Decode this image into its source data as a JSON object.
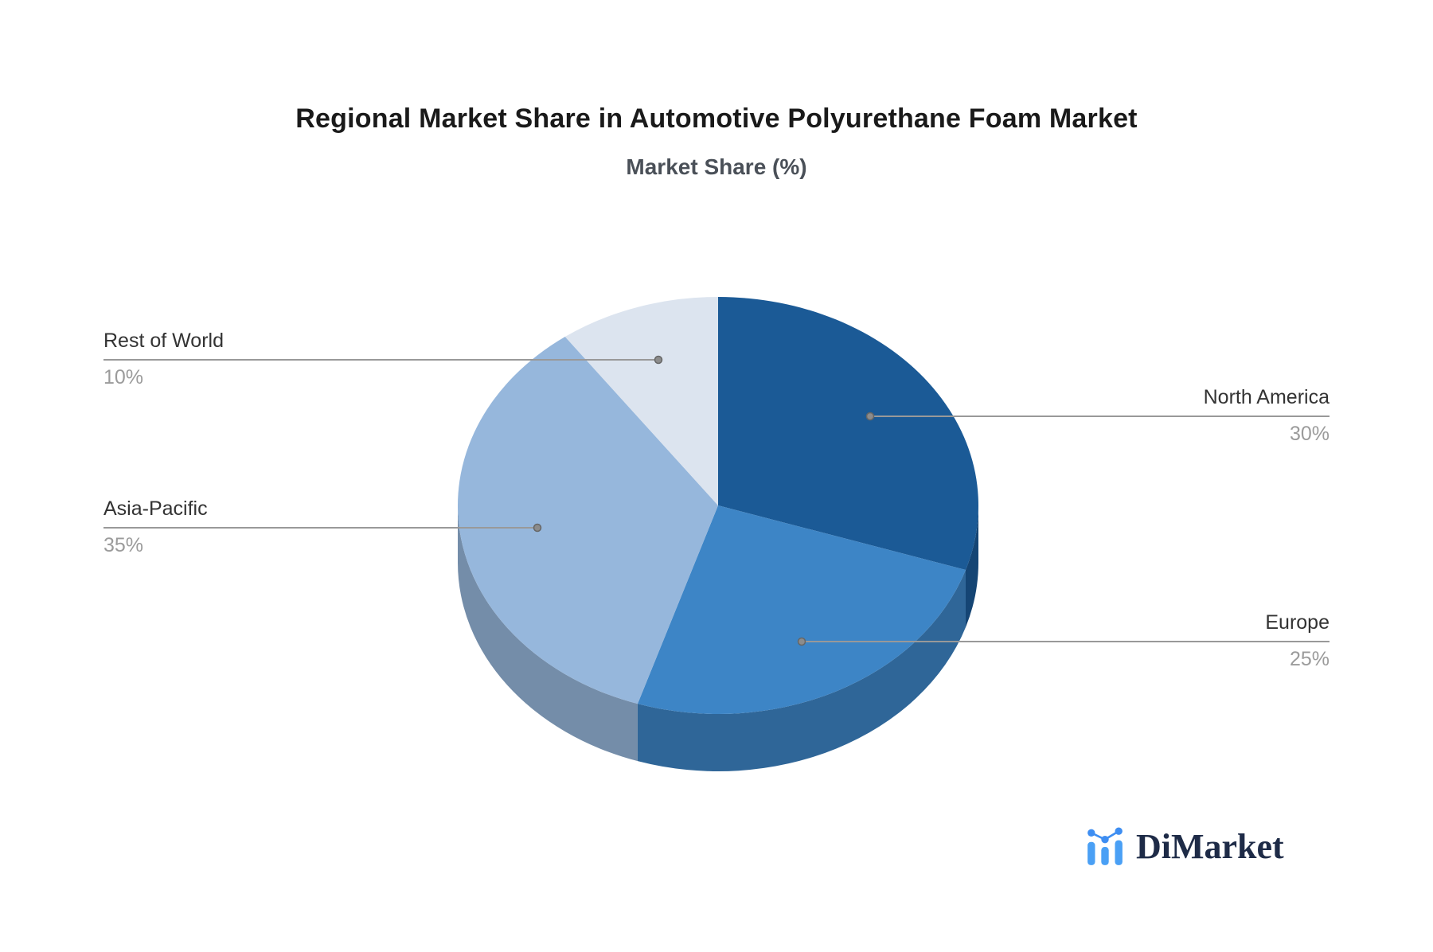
{
  "chart_data": {
    "type": "pie",
    "title": "Regional Market Share in Automotive Polyurethane Foam Market",
    "subtitle": "Market Share (%)",
    "unit": "%",
    "effect": "3d-depth",
    "legend": "none",
    "label_layout": "callouts-with-leader-lines",
    "categories": [
      "North America",
      "Europe",
      "Asia-Pacific",
      "Rest of World"
    ],
    "values": [
      30,
      25,
      35,
      10
    ],
    "slices": [
      {
        "label": "North America",
        "value": 30,
        "value_text": "30%",
        "color": "#1b5a96"
      },
      {
        "label": "Europe",
        "value": 25,
        "value_text": "25%",
        "color": "#3d85c6"
      },
      {
        "label": "Asia-Pacific",
        "value": 35,
        "value_text": "35%",
        "color": "#96b7dc"
      },
      {
        "label": "Rest of World",
        "value": 10,
        "value_text": "10%",
        "color": "#dce4ef"
      }
    ]
  },
  "logo": {
    "text": "DiMarket",
    "icon": "bar-line-chart-icon",
    "text_color": "#1e2b47",
    "icon_color": "#4a9df5"
  },
  "colors": {
    "background": "#ffffff",
    "title": "#1a1a1a",
    "subtitle": "#4a5058",
    "label_text": "#333333",
    "value_text": "#9b9b9b",
    "leader_line": "#999999",
    "marker_fill": "#8c8c8c",
    "marker_stroke": "#666666"
  }
}
